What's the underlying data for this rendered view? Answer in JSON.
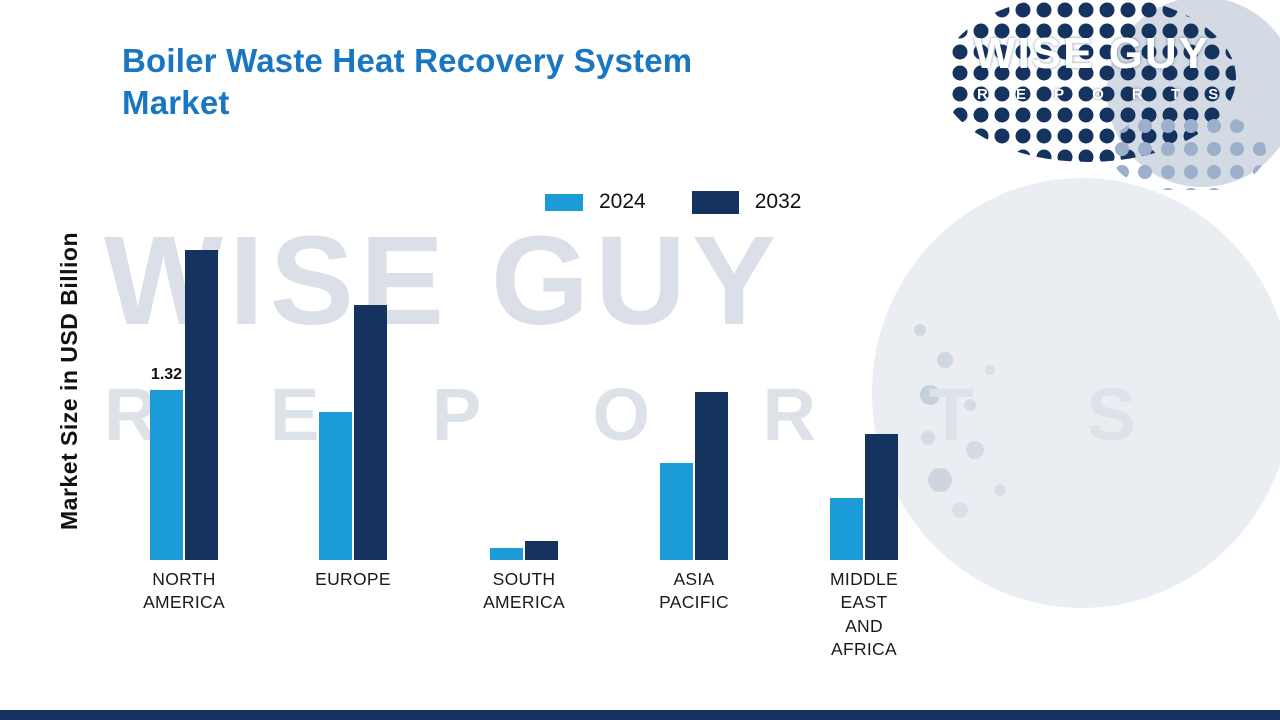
{
  "title": {
    "line1": "Boiler Waste Heat Recovery System",
    "line2": "Market"
  },
  "watermark": {
    "line1": "WISE GUY",
    "line2": "R E P O R T S"
  },
  "logo": {
    "line1": "WISE GUY",
    "line2": "R E P O R T S"
  },
  "colors": {
    "series_2024": "#1b9cd9",
    "series_2032": "#15335f",
    "title_blue": "#1b76c2",
    "footer_bar": "#15335f"
  },
  "chart_data": {
    "type": "bar",
    "title": "Boiler Waste Heat Recovery System Market",
    "ylabel": "Market Size in USD Billion",
    "xlabel": "",
    "ylim": [
      0,
      2.6
    ],
    "grid": false,
    "legend_position": "top",
    "categories": [
      "NORTH AMERICA",
      "EUROPE",
      "SOUTH AMERICA",
      "ASIA PACIFIC",
      "MIDDLE EAST AND AFRICA"
    ],
    "series": [
      {
        "name": "2024",
        "color": "#1b9cd9",
        "values": [
          1.32,
          1.15,
          0.09,
          0.75,
          0.48
        ]
      },
      {
        "name": "2032",
        "color": "#15335f",
        "values": [
          2.4,
          1.98,
          0.15,
          1.3,
          0.98
        ]
      }
    ],
    "annotations": [
      {
        "series": "2024",
        "category": "NORTH AMERICA",
        "text": "1.32"
      }
    ]
  }
}
